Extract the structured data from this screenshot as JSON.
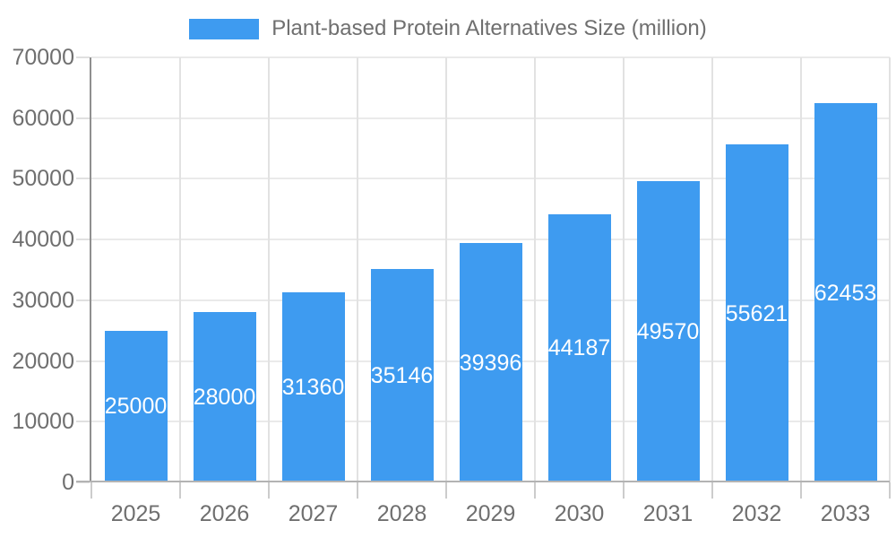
{
  "legend": {
    "label": "Plant-based Protein Alternatives Size (million)"
  },
  "chart_data": {
    "type": "bar",
    "title": "Plant-based Protein Alternatives Size (million)",
    "categories": [
      "2025",
      "2026",
      "2027",
      "2028",
      "2029",
      "2030",
      "2031",
      "2032",
      "2033"
    ],
    "series": [
      {
        "name": "Plant-based Protein Alternatives Size (million)",
        "values": [
          25000,
          28000,
          31360,
          35146,
          39396,
          44187,
          49570,
          55621,
          62453
        ]
      }
    ],
    "xlabel": "",
    "ylabel": "",
    "ylim": [
      0,
      70000
    ],
    "yticks": [
      0,
      10000,
      20000,
      30000,
      40000,
      50000,
      60000,
      70000
    ],
    "grid": true,
    "legend_position": "top",
    "bar_label_position": "inside-center",
    "colors": {
      "bar": "#3E9BF0",
      "bar_label": "#FFFFFF",
      "axis_text": "#6F6F6F",
      "grid_line_h": "#EAEAEA",
      "grid_line_v": "#E2E2E2",
      "y_tick": "#E0E0E0",
      "x_tick": "#CCCCCC",
      "y_axis_line": "#8F8F8F",
      "x_axis_line": "#B3B3B3",
      "background": "#FFFFFF"
    }
  }
}
